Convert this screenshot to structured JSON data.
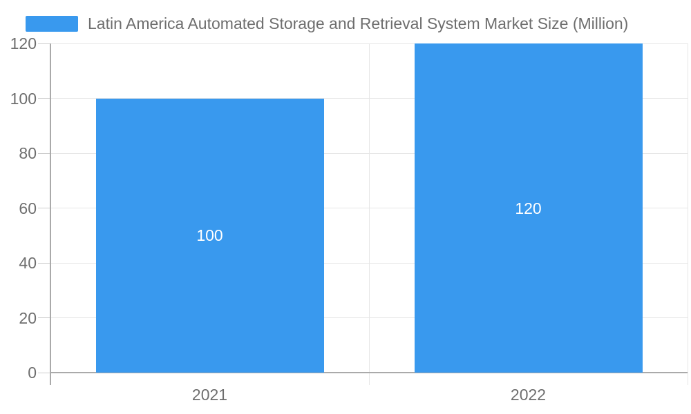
{
  "chart_data": {
    "type": "bar",
    "title": "Latin America Automated Storage and Retrieval System Market Size (Million)",
    "categories": [
      "2021",
      "2022"
    ],
    "series": [
      {
        "name": "Latin America Automated Storage and Retrieval System Market Size (Million)",
        "values": [
          100,
          120
        ]
      }
    ],
    "values": [
      100,
      120
    ],
    "value_labels": [
      "100",
      "120"
    ],
    "xlabel": "",
    "ylabel": "",
    "ylim": [
      0,
      120
    ],
    "y_ticks": [
      0,
      20,
      40,
      60,
      80,
      100,
      120
    ],
    "grid": true,
    "legend_position": "top-left",
    "colors": {
      "bar": "#3999ee",
      "value_label": "#ffffff",
      "grid_line": "#e6e6e6",
      "axis_line": "#aaaaaa",
      "tick_line": "#cccccc",
      "text": "#6e6e6e",
      "background": "#ffffff"
    }
  }
}
